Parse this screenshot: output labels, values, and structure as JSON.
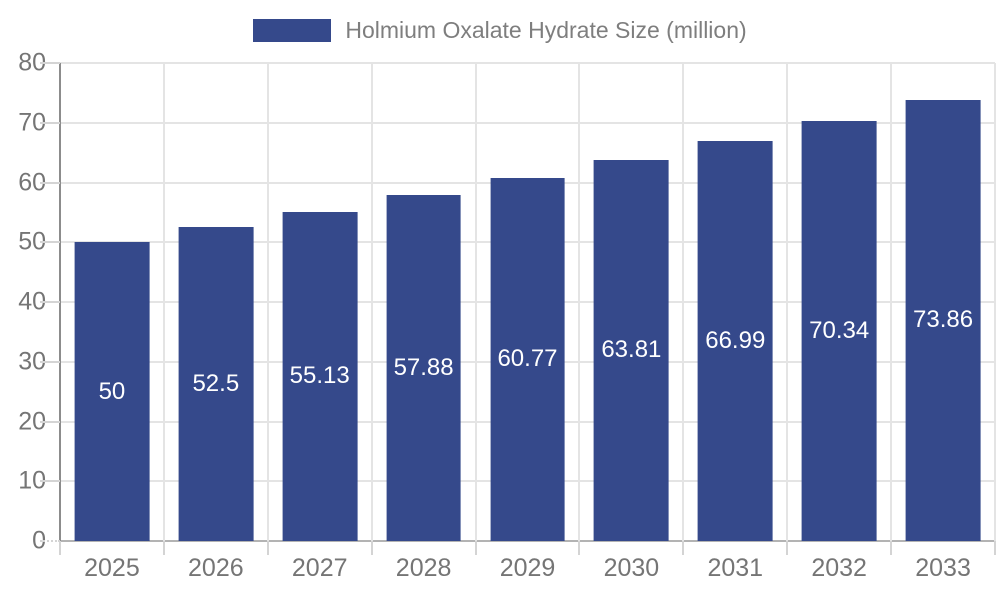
{
  "chart_data": {
    "type": "bar",
    "title": "Holmium Oxalate Hydrate Size (million)",
    "categories": [
      "2025",
      "2026",
      "2027",
      "2028",
      "2029",
      "2030",
      "2031",
      "2032",
      "2033"
    ],
    "values": [
      50,
      52.5,
      55.13,
      57.88,
      60.77,
      63.81,
      66.99,
      70.34,
      73.86
    ],
    "bar_labels": [
      "50",
      "52.5",
      "55.13",
      "57.88",
      "60.77",
      "63.81",
      "66.99",
      "70.34",
      "73.86"
    ],
    "xlabel": "",
    "ylabel": "",
    "ylim": [
      0,
      80
    ],
    "yticks": [
      0,
      10,
      20,
      30,
      40,
      50,
      60,
      70,
      80
    ],
    "grid": true,
    "legend_position": "top",
    "colors": {
      "bar": "#35498B",
      "bar_label": "#FFFFFF",
      "axis_text": "#757575",
      "legend_text": "#7E7E7E",
      "gridline": "#E4E4E4",
      "y_axis_line": "#8C8C8C",
      "x_axis_line": "#B3B3B3",
      "tick": "#D4D4D4"
    }
  }
}
